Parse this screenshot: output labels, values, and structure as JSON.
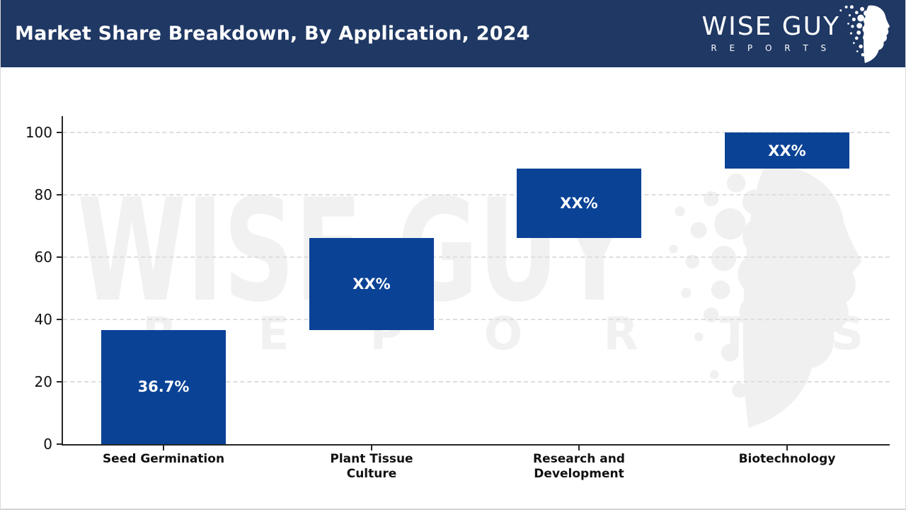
{
  "header": {
    "title": "Market Share Breakdown, By Application, 2024",
    "background_color": "#1f3864",
    "logo": {
      "wordmark": "WISE GUY",
      "subtext": "R E P O R T S"
    }
  },
  "watermark": {
    "line1": "WISE GUY",
    "line2": "R E P O R T S"
  },
  "chart_data": {
    "type": "bar",
    "subtype": "waterfall",
    "title": "Market Share Breakdown, By Application, 2024",
    "categories": [
      "Seed Germination",
      "Plant Tissue Culture",
      "Research and Development",
      "Biotechnology"
    ],
    "category_lines": [
      [
        "Seed Germination"
      ],
      [
        "Plant Tissue",
        "Culture"
      ],
      [
        "Research and",
        "Development"
      ],
      [
        "Biotechnology"
      ]
    ],
    "segments": [
      {
        "category": "Seed Germination",
        "start": 0,
        "end": 36.7,
        "label": "36.7%"
      },
      {
        "category": "Plant Tissue Culture",
        "start": 36.7,
        "end": 66.1,
        "label": "XX%"
      },
      {
        "category": "Research and Development",
        "start": 66.1,
        "end": 88.4,
        "label": "XX%"
      },
      {
        "category": "Biotechnology",
        "start": 88.4,
        "end": 100,
        "label": "XX%"
      }
    ],
    "xlabel": "",
    "ylabel": "",
    "ylim": [
      0,
      100
    ],
    "yticks": [
      "0",
      "20",
      "40",
      "60",
      "80",
      "100"
    ],
    "grid": "horizontal-dashed",
    "legend": "none",
    "bar_color": "#0a4296",
    "value_label_color": "#ffffff",
    "axis_color": "#262626"
  }
}
